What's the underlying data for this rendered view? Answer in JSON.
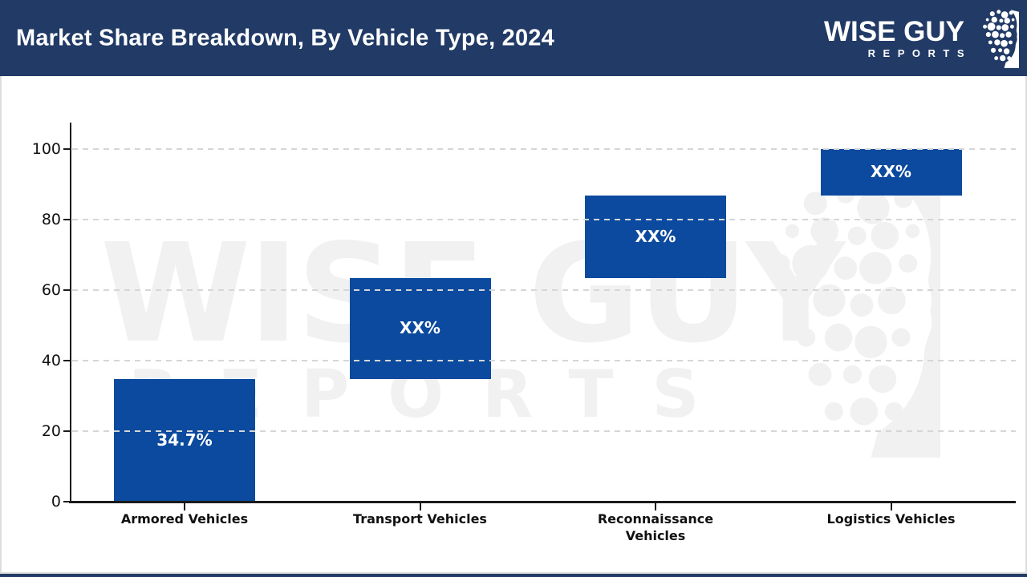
{
  "header": {
    "title": "Market Share Breakdown, By Vehicle Type, 2024",
    "logo": {
      "brand": "WISE GUY",
      "sub": "REPORTS"
    }
  },
  "watermark": {
    "brand": "WISE GUY",
    "sub": "REPORTS"
  },
  "colors": {
    "header_bg": "#213A66",
    "bar": "#0B4A9E",
    "bar_label": "#FFFFFF",
    "axis": "#1A1A1A",
    "tick_label": "#111111",
    "grid": "#D6D6D6",
    "watermark": "#F1F1F1",
    "border": "#DDDDDD"
  },
  "chart_data": {
    "type": "bar",
    "subtype": "floating-segment-waterfall",
    "title": "Market Share Breakdown, By Vehicle Type, 2024",
    "xlabel": "",
    "ylabel": "",
    "ylim": [
      0,
      100
    ],
    "yticks": [
      0,
      20,
      40,
      60,
      80,
      100
    ],
    "grid": "horizontal-dashed",
    "legend": "none",
    "categories": [
      "Armored Vehicles",
      "Transport Vehicles",
      "Reconnaissance Vehicles",
      "Logistics Vehicles"
    ],
    "bars": [
      {
        "category": "Armored Vehicles",
        "start": 0,
        "end": 34.7,
        "label": "34.7%"
      },
      {
        "category": "Transport Vehicles",
        "start": 34.7,
        "end": 63.4,
        "label": "XX%"
      },
      {
        "category": "Reconnaissance Vehicles",
        "start": 63.4,
        "end": 86.8,
        "label": "XX%"
      },
      {
        "category": "Logistics Vehicles",
        "start": 86.8,
        "end": 100,
        "label": "XX%"
      }
    ]
  }
}
